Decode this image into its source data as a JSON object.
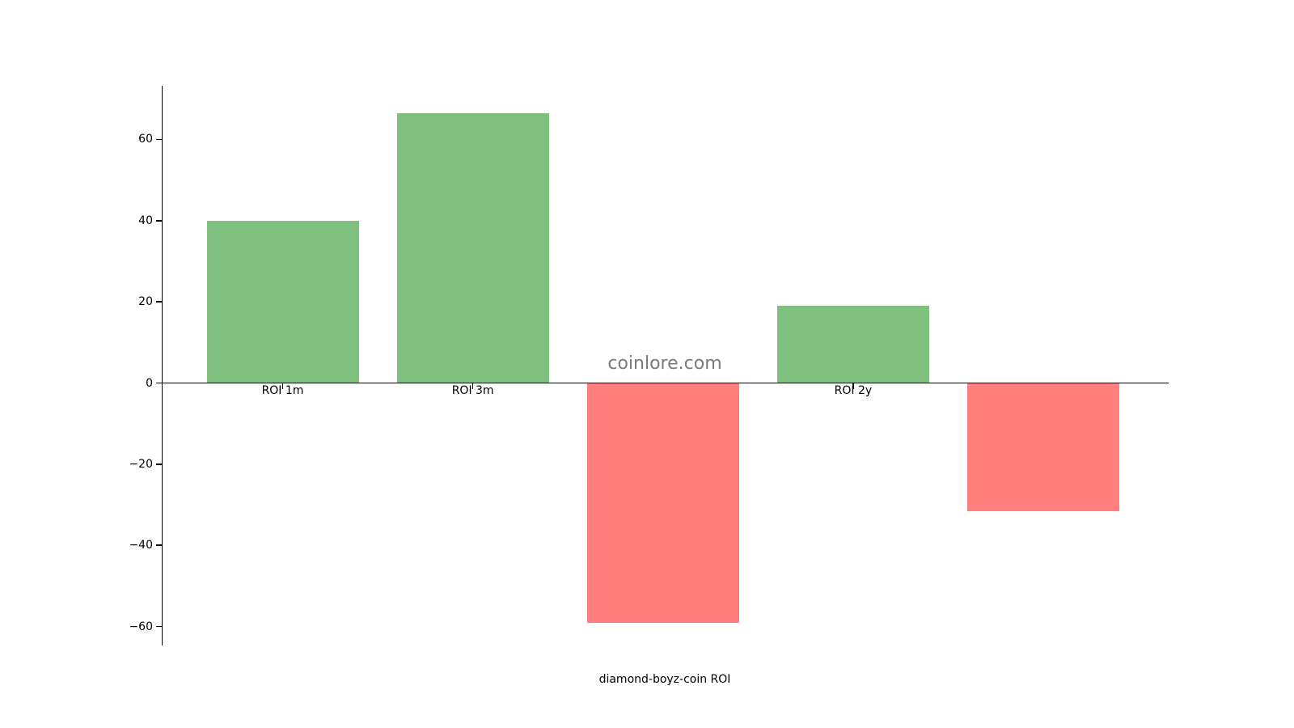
{
  "watermark": {
    "text": "coinlore.com",
    "color": "#7a7a7a"
  },
  "chart_data": {
    "type": "bar",
    "title": "diamond-boyz-coin ROI",
    "categories": [
      "ROI 1m",
      "ROI 3m",
      "",
      "ROI 2y",
      ""
    ],
    "values": [
      40,
      66.5,
      -59,
      19,
      -31.5
    ],
    "positive_color": "#7fbf7f",
    "negative_color": "#ff7f7f",
    "axis_color": "#000000",
    "yticks": [
      60,
      40,
      20,
      0,
      -20,
      -40,
      -60
    ],
    "ytick_labels": [
      "60",
      "40",
      "20",
      "0",
      "−20",
      "−40",
      "−60"
    ],
    "ylim": [
      -65,
      73
    ],
    "xlabel": "",
    "ylabel": "",
    "grid": false,
    "legend": null
  }
}
